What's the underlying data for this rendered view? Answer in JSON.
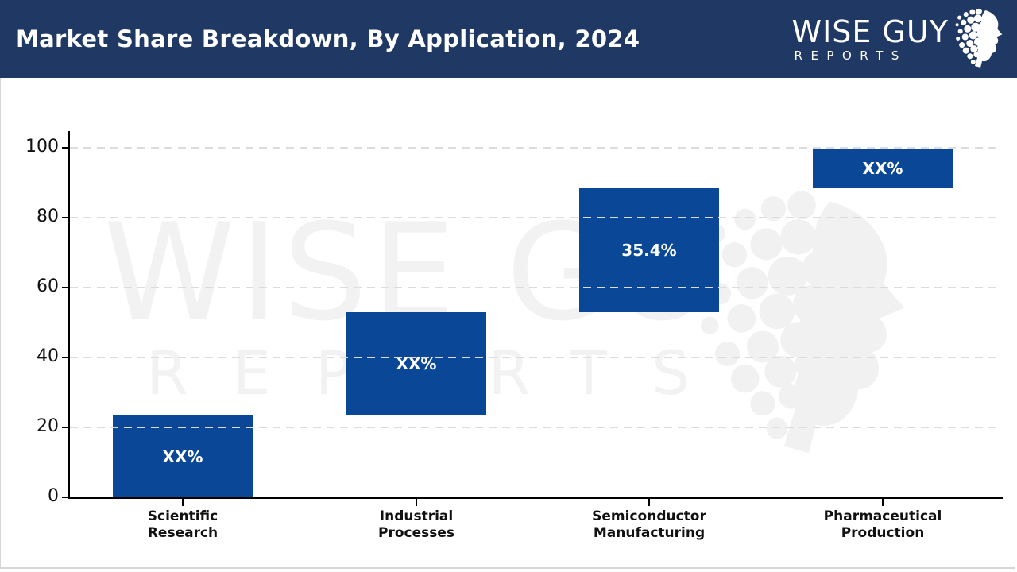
{
  "header": {
    "title": "Market Share Breakdown, By Application, 2024",
    "logo": {
      "line1": "WISE GUY",
      "line2": "REPORTS"
    }
  },
  "watermark": {
    "line1": "WISE GU",
    "line2": "REPORTS"
  },
  "colors": {
    "header_bg": "#1f3864",
    "bar": "#0a4796",
    "bar_label": "#ffffff",
    "grid": "#dcdcdc",
    "axis": "#000000",
    "tick_text": "#111111",
    "watermark": "#f2f2f2"
  },
  "chart_data": {
    "type": "bar",
    "subtype": "waterfall",
    "title": "Market Share Breakdown, By Application, 2024",
    "categories": [
      "Scientific Research",
      "Industrial Processes",
      "Semiconductor Manufacturing",
      "Pharmaceutical Production"
    ],
    "categories_two_line": [
      [
        "Scientific",
        "Research"
      ],
      [
        "Industrial",
        "Processes"
      ],
      [
        "Semiconductor",
        "Manufacturing"
      ],
      [
        "Pharmaceutical",
        "Production"
      ]
    ],
    "segments": [
      {
        "category": "Scientific Research",
        "start": 0,
        "end": 23.4,
        "label": "XX%"
      },
      {
        "category": "Industrial Processes",
        "start": 23.4,
        "end": 53.0,
        "label": "XX%"
      },
      {
        "category": "Semiconductor Manufacturing",
        "start": 53.0,
        "end": 88.4,
        "label": "35.4%"
      },
      {
        "category": "Pharmaceutical Production",
        "start": 88.4,
        "end": 99.8,
        "label": "XX%"
      }
    ],
    "xlabel": "",
    "ylabel": "",
    "ylim": [
      0,
      100
    ],
    "yticks": [
      0,
      20,
      40,
      60,
      80,
      100
    ],
    "grid": "horizontal-dashed-above-bars",
    "legend": "none"
  }
}
